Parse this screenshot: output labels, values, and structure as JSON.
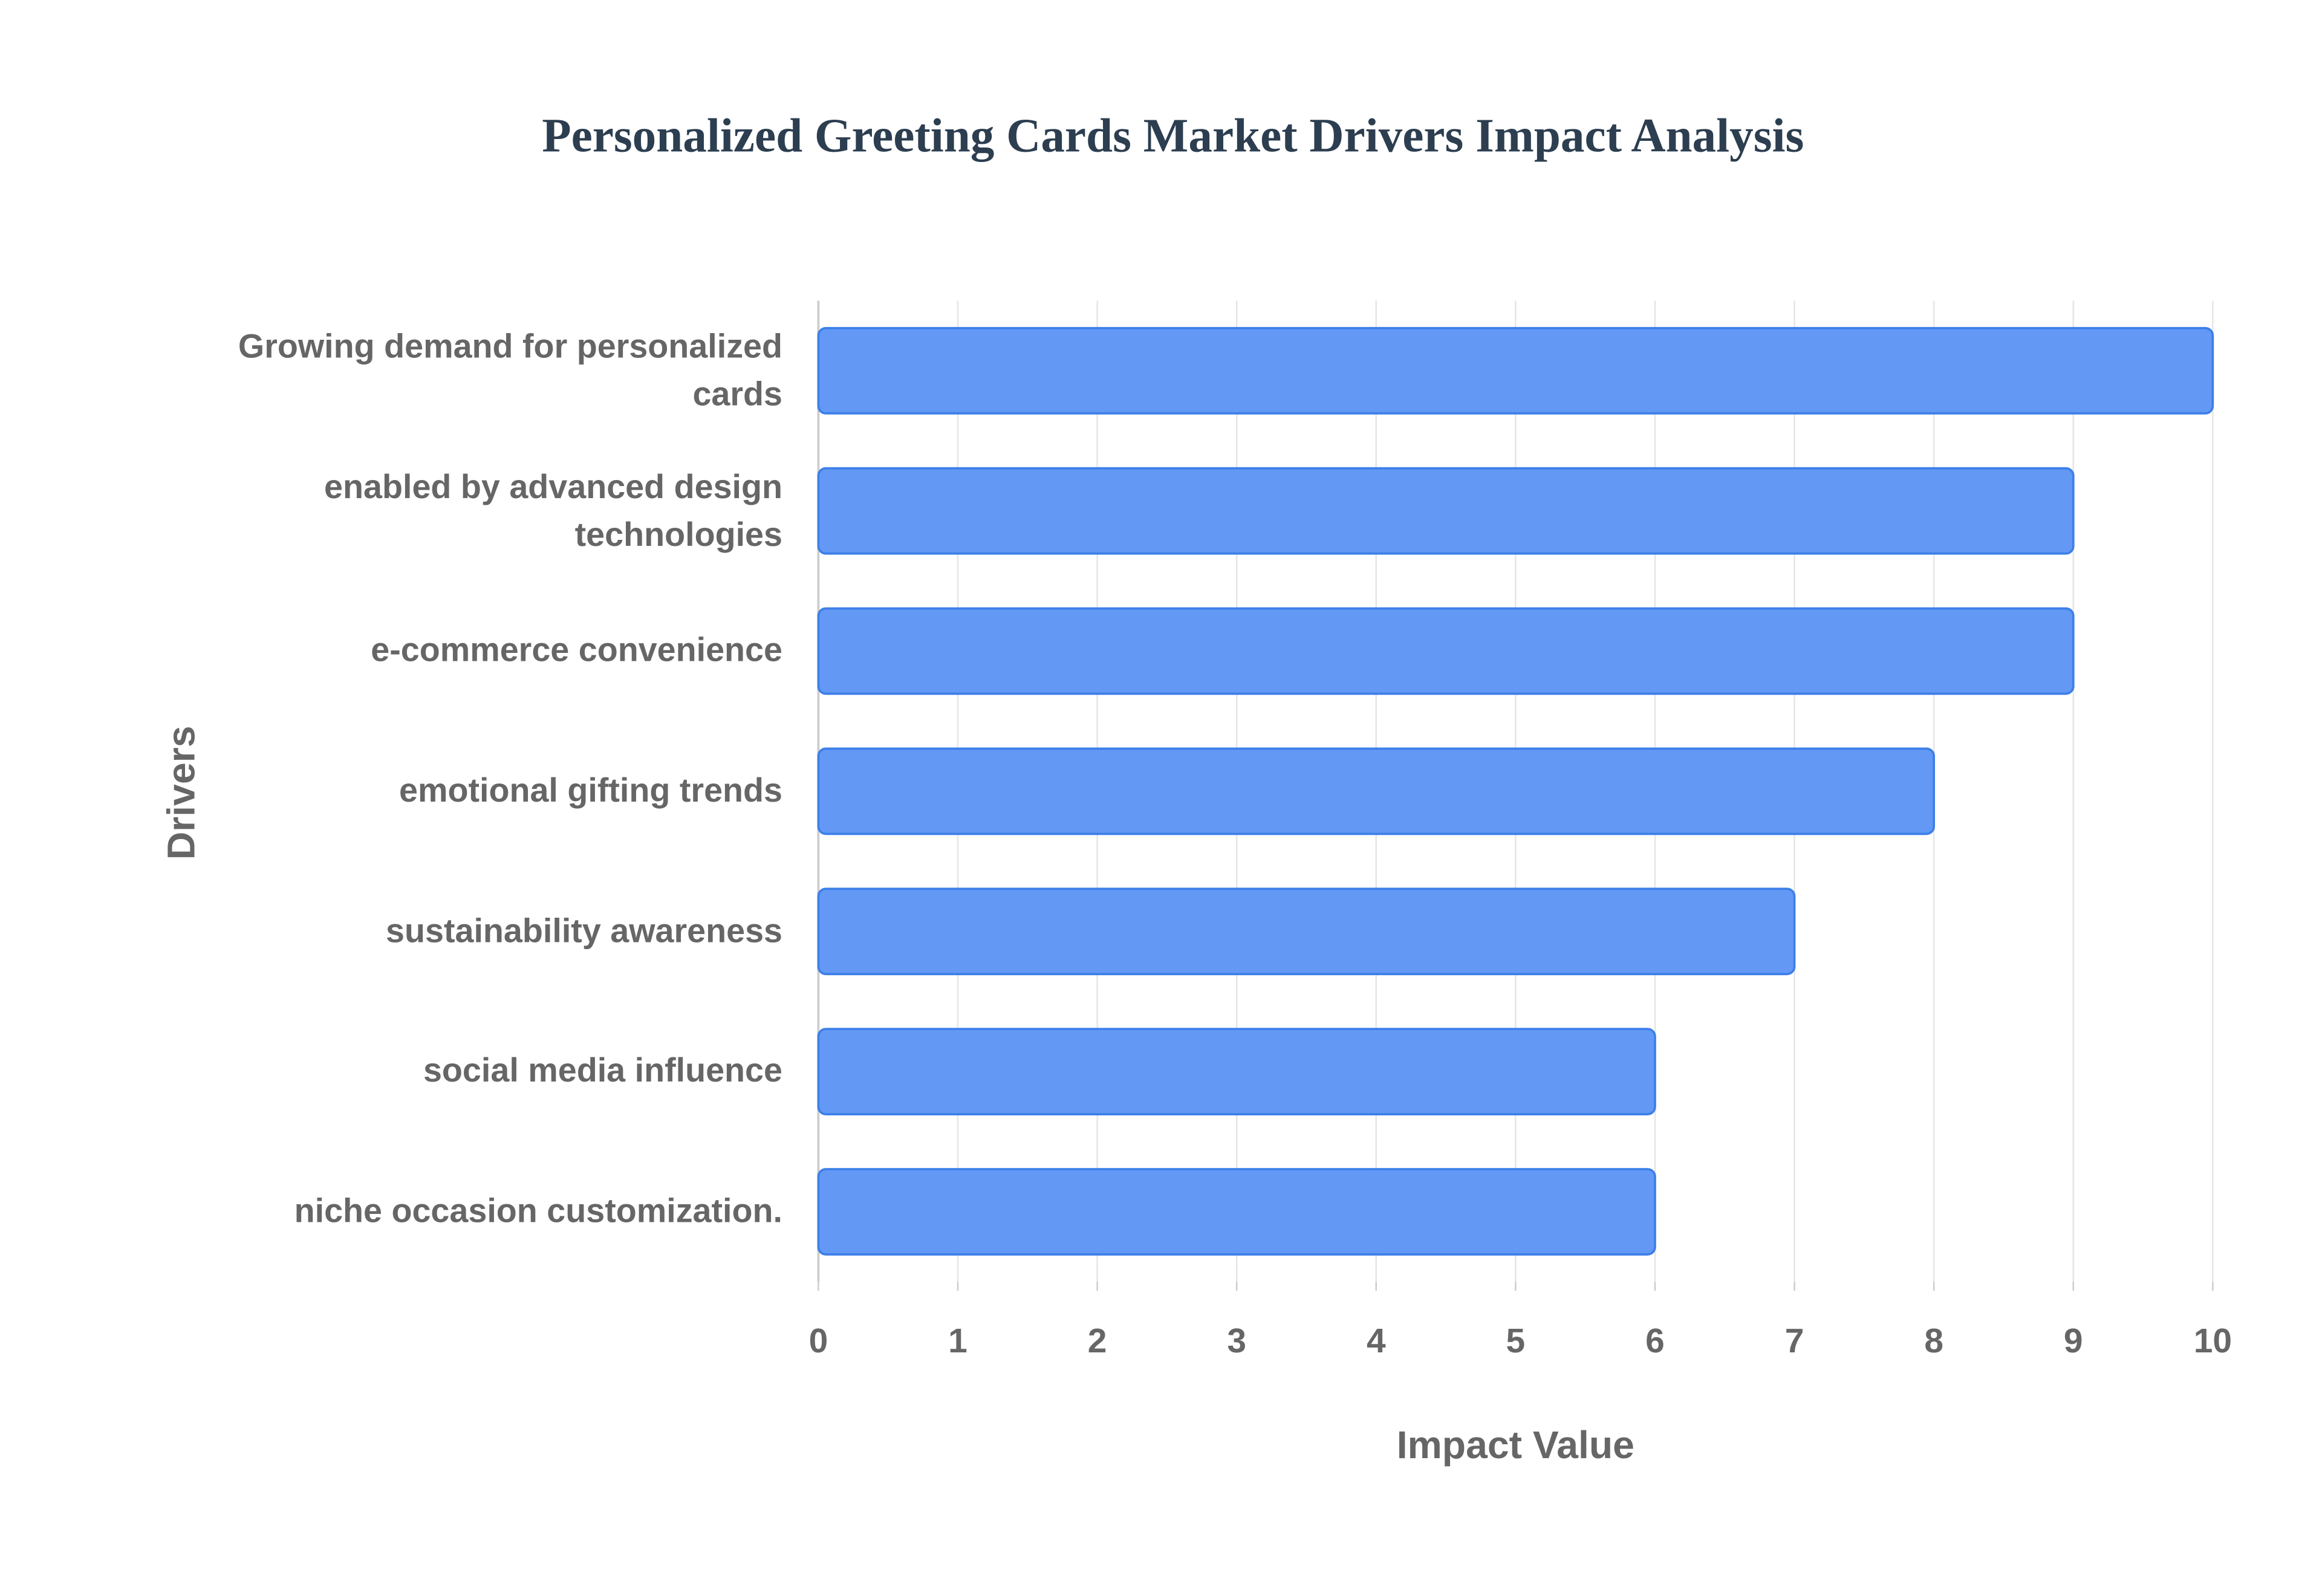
{
  "chart_data": {
    "type": "bar",
    "orientation": "horizontal",
    "title": "Personalized Greeting Cards Market Drivers Impact Analysis",
    "x_label": "Impact Value",
    "y_label": "Drivers",
    "categories": [
      "Growing demand for personalized cards",
      "enabled by advanced design technologies",
      "e-commerce convenience",
      "emotional gifting trends",
      "sustainability awareness",
      "social media influence",
      "niche occasion customization."
    ],
    "values": [
      10,
      9,
      9,
      8,
      7,
      6,
      6
    ],
    "color": "#6399f5",
    "xlim": [
      0,
      10
    ],
    "xticks": [
      0,
      1,
      2,
      3,
      4,
      5,
      6,
      7,
      8,
      9,
      10
    ],
    "grid": true
  }
}
